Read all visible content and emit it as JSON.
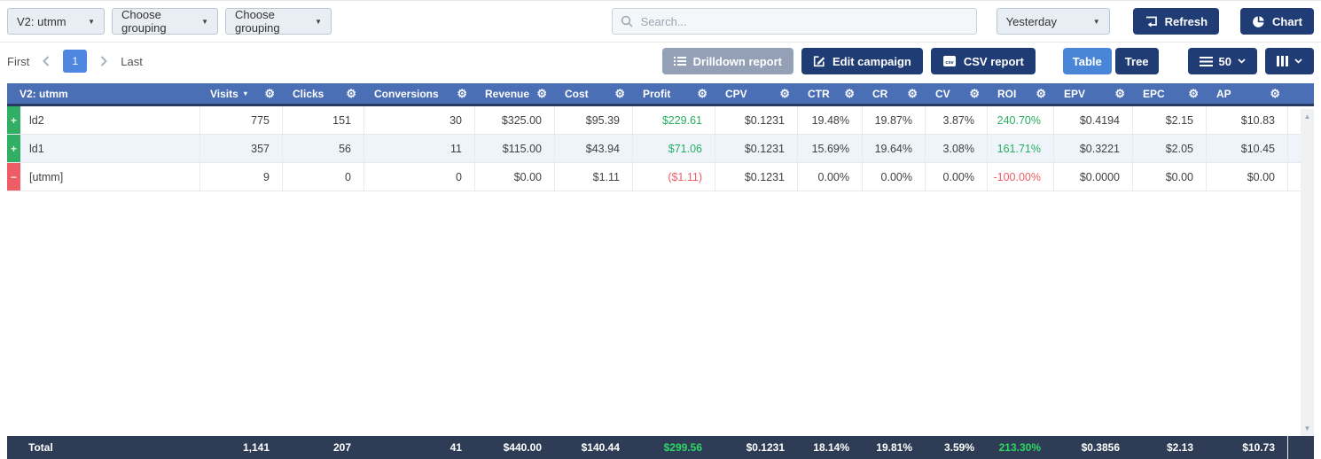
{
  "toolbar": {
    "campaign_select": "V2: utmm",
    "grouping1": "Choose grouping",
    "grouping2": "Choose grouping",
    "search_placeholder": "Search...",
    "date_range": "Yesterday",
    "refresh_label": "Refresh",
    "chart_label": "Chart"
  },
  "pagination": {
    "first": "First",
    "page": "1",
    "last": "Last"
  },
  "actions": {
    "drilldown_label": "Drilldown report",
    "edit_label": "Edit campaign",
    "csv_label": "CSV report",
    "table_label": "Table",
    "tree_label": "Tree",
    "rows_per_page": "50"
  },
  "colors": {
    "header_blue": "#4a6fb5",
    "navy_button": "#203c74",
    "active_page_blue": "#4f86e0",
    "positive_green": "#27ae60",
    "negative_red": "#ed5e68",
    "total_bar": "#2e3c55",
    "indicator_green": "#2fae64",
    "indicator_red": "#ee5d66"
  },
  "table": {
    "columns": [
      {
        "label": "V2: utmm",
        "gear": false,
        "sorted": false
      },
      {
        "label": "Visits",
        "gear": true,
        "sorted": true
      },
      {
        "label": "Clicks",
        "gear": true,
        "sorted": false
      },
      {
        "label": "Conversions",
        "gear": true,
        "sorted": false
      },
      {
        "label": "Revenue",
        "gear": true,
        "sorted": false
      },
      {
        "label": "Cost",
        "gear": true,
        "sorted": false
      },
      {
        "label": "Profit",
        "gear": true,
        "sorted": false
      },
      {
        "label": "CPV",
        "gear": true,
        "sorted": false
      },
      {
        "label": "CTR",
        "gear": true,
        "sorted": false
      },
      {
        "label": "CR",
        "gear": true,
        "sorted": false
      },
      {
        "label": "CV",
        "gear": true,
        "sorted": false
      },
      {
        "label": "ROI",
        "gear": true,
        "sorted": false
      },
      {
        "label": "EPV",
        "gear": true,
        "sorted": false
      },
      {
        "label": "EPC",
        "gear": true,
        "sorted": false
      },
      {
        "label": "AP",
        "gear": true,
        "sorted": false
      }
    ],
    "rows": [
      {
        "name": "ld2",
        "indicator": {
          "color": "#2fae64",
          "symbol": "+"
        },
        "cells": [
          {
            "text": "775"
          },
          {
            "text": "151"
          },
          {
            "text": "30"
          },
          {
            "text": "$325.00"
          },
          {
            "text": "$95.39"
          },
          {
            "text": "$229.61",
            "tone": "pos"
          },
          {
            "text": "$0.1231"
          },
          {
            "text": "19.48%"
          },
          {
            "text": "19.87%"
          },
          {
            "text": "3.87%"
          },
          {
            "text": "240.70%",
            "tone": "pos"
          },
          {
            "text": "$0.4194"
          },
          {
            "text": "$2.15"
          },
          {
            "text": "$10.83"
          }
        ]
      },
      {
        "name": "ld1",
        "indicator": {
          "color": "#2fae64",
          "symbol": "+"
        },
        "cells": [
          {
            "text": "357"
          },
          {
            "text": "56"
          },
          {
            "text": "11"
          },
          {
            "text": "$115.00"
          },
          {
            "text": "$43.94"
          },
          {
            "text": "$71.06",
            "tone": "pos"
          },
          {
            "text": "$0.1231"
          },
          {
            "text": "15.69%"
          },
          {
            "text": "19.64%"
          },
          {
            "text": "3.08%"
          },
          {
            "text": "161.71%",
            "tone": "pos"
          },
          {
            "text": "$0.3221"
          },
          {
            "text": "$2.05"
          },
          {
            "text": "$10.45"
          }
        ]
      },
      {
        "name": "[utmm]",
        "indicator": {
          "color": "#ee5d66",
          "symbol": "−"
        },
        "cells": [
          {
            "text": "9"
          },
          {
            "text": "0"
          },
          {
            "text": "0"
          },
          {
            "text": "$0.00"
          },
          {
            "text": "$1.11"
          },
          {
            "text": "($1.11)",
            "tone": "neg"
          },
          {
            "text": "$0.1231"
          },
          {
            "text": "0.00%"
          },
          {
            "text": "0.00%"
          },
          {
            "text": "0.00%"
          },
          {
            "text": "-100.00%",
            "tone": "neg"
          },
          {
            "text": "$0.0000"
          },
          {
            "text": "$0.00"
          },
          {
            "text": "$0.00"
          }
        ]
      }
    ],
    "total": {
      "label": "Total",
      "cells": [
        {
          "text": "1,141"
        },
        {
          "text": "207"
        },
        {
          "text": "41"
        },
        {
          "text": "$440.00"
        },
        {
          "text": "$140.44"
        },
        {
          "text": "$299.56",
          "tone": "pos"
        },
        {
          "text": "$0.1231"
        },
        {
          "text": "18.14%"
        },
        {
          "text": "19.81%"
        },
        {
          "text": "3.59%"
        },
        {
          "text": "213.30%",
          "tone": "pos"
        },
        {
          "text": "$0.3856"
        },
        {
          "text": "$2.13"
        },
        {
          "text": "$10.73"
        }
      ]
    }
  }
}
